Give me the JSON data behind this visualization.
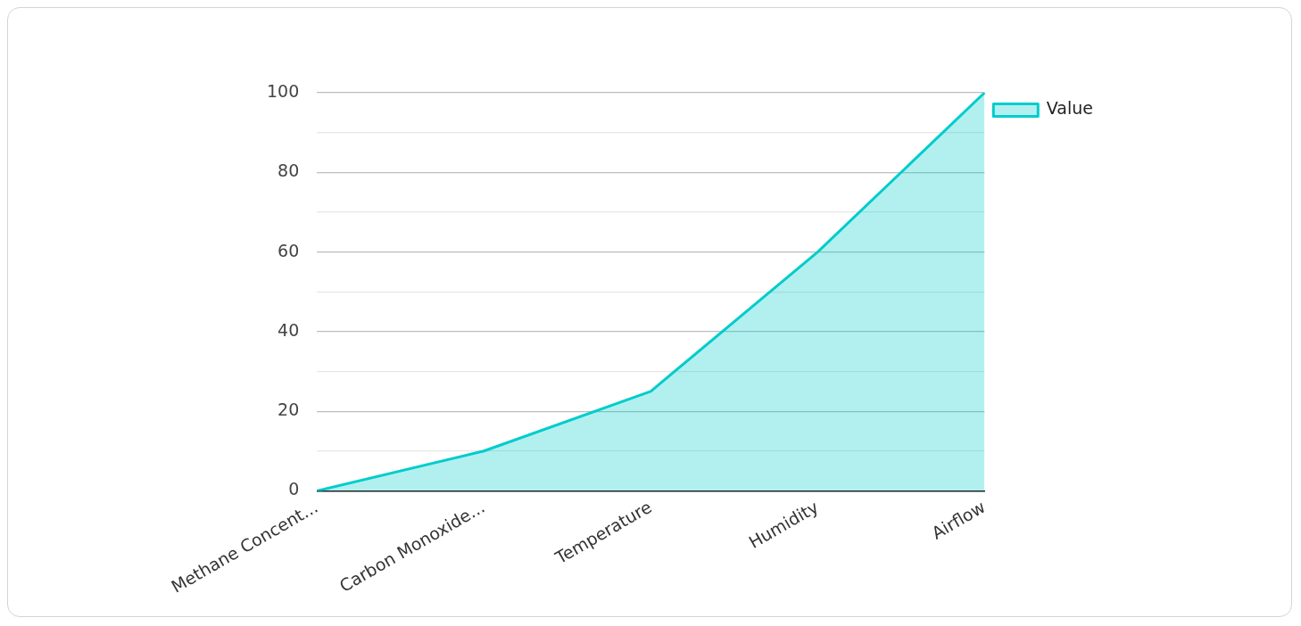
{
  "chart_data": {
    "type": "area",
    "categories": [
      "Methane Concent...",
      "Carbon Monoxide...",
      "Temperature",
      "Humidity",
      "Airflow"
    ],
    "series": [
      {
        "name": "Value",
        "color": "#00cccc",
        "values": [
          0,
          10,
          25,
          60,
          100
        ]
      }
    ],
    "ylim": [
      0,
      100
    ],
    "yticks": [
      0,
      {
        "value": 10,
        "label": null
      },
      20,
      {
        "value": 30,
        "label": null
      },
      40,
      {
        "value": 50,
        "label": null
      },
      60,
      {
        "value": 70,
        "label": null
      },
      80,
      {
        "value": 90,
        "label": null
      },
      100
    ],
    "grid": "y",
    "legend": "top right"
  }
}
